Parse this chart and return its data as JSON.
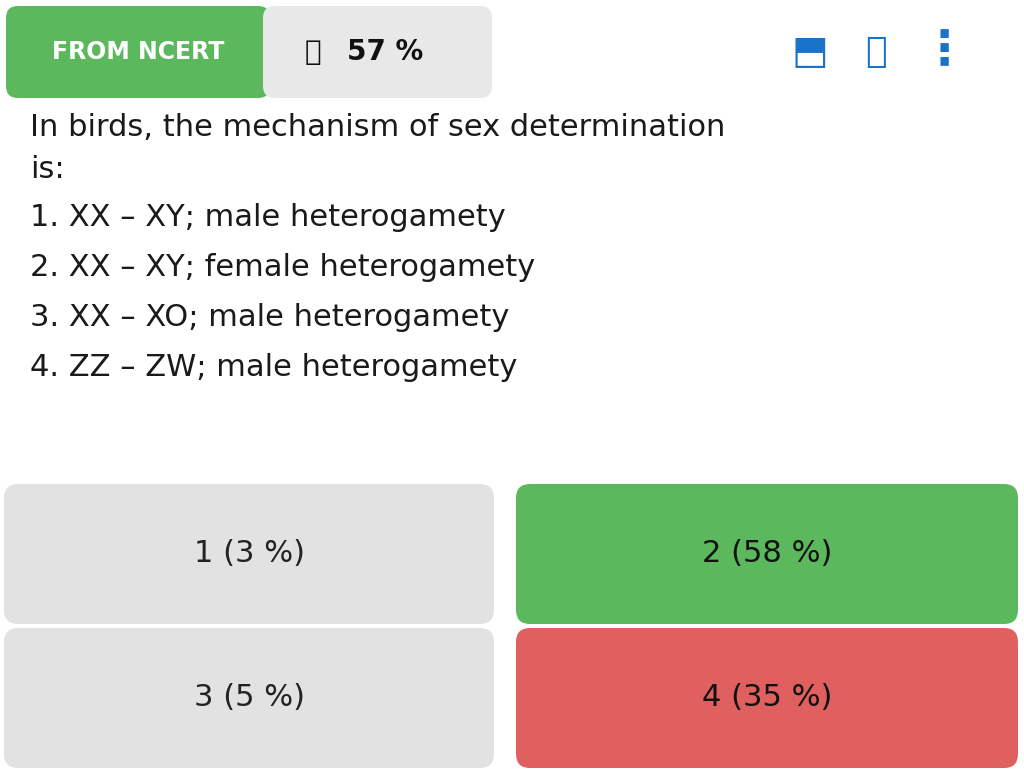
{
  "background_color": "#ffffff",
  "header_badge_color": "#5cb85c",
  "header_badge_text": "FROM NCERT",
  "header_badge_text_color": "#ffffff",
  "like_box_color": "#e8e8e8",
  "like_text": "57 %",
  "like_text_color": "#111111",
  "question_line1": "In birds, the mechanism of sex determination",
  "question_line2": "is:",
  "options": [
    "1. XX – XY; male heterogamety",
    "2. XX – XY; female heterogamety",
    "3. XX – XO; male heterogamety",
    "4. ZZ – ZW; male heterogamety"
  ],
  "answer_boxes": [
    {
      "label": "1 (3 %)",
      "color": "#e2e2e2",
      "text_color": "#222222",
      "row": 0,
      "col": 0
    },
    {
      "label": "2 (58 %)",
      "color": "#5cb85c",
      "text_color": "#111111",
      "row": 0,
      "col": 1
    },
    {
      "label": "3 (5 %)",
      "color": "#e2e2e2",
      "text_color": "#222222",
      "row": 1,
      "col": 0
    },
    {
      "label": "4 (35 %)",
      "color": "#e06060",
      "text_color": "#111111",
      "row": 1,
      "col": 1
    }
  ],
  "icon_color": "#1a73c8"
}
